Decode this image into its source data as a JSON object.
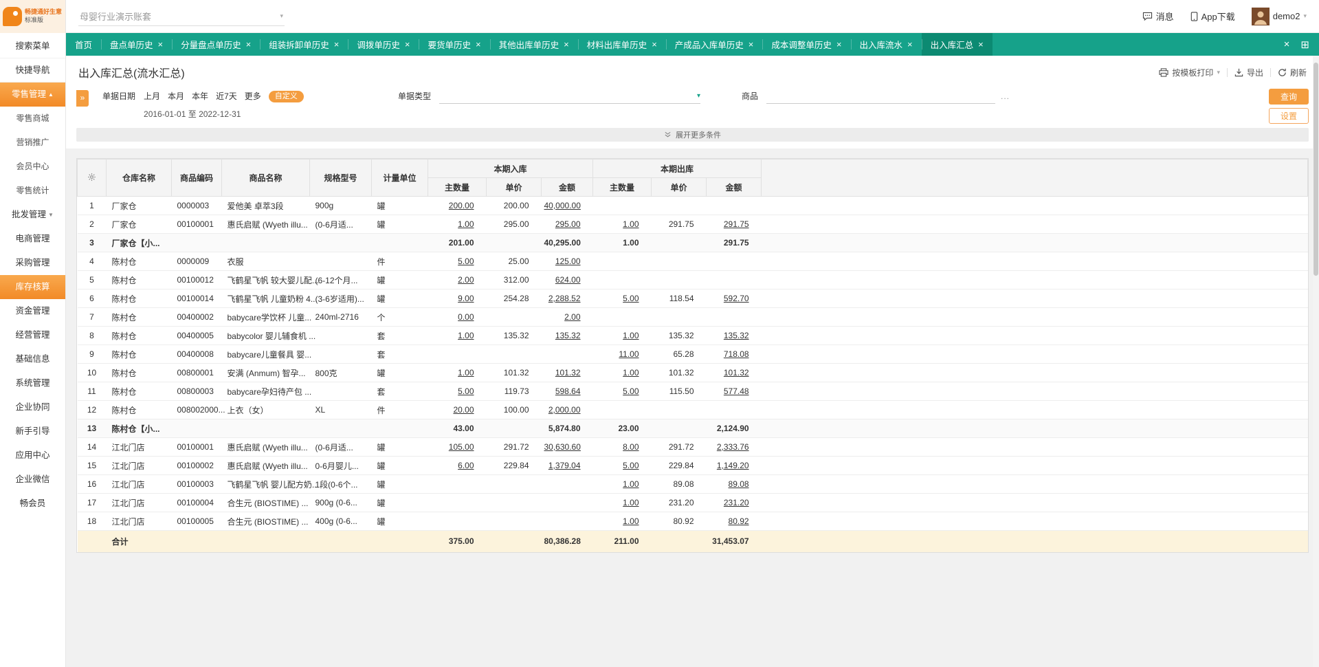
{
  "brand": {
    "name": "畅捷通好生意",
    "edition": "标准版"
  },
  "topbar": {
    "account_placeholder": "母婴行业演示账套",
    "message": "消息",
    "app_download": "App下载",
    "username": "demo2"
  },
  "tabs": [
    {
      "label": "首页",
      "closable": false,
      "active": false
    },
    {
      "label": "盘点单历史",
      "closable": true,
      "active": false
    },
    {
      "label": "分量盘点单历史",
      "closable": true,
      "active": false
    },
    {
      "label": "组装拆卸单历史",
      "closable": true,
      "active": false
    },
    {
      "label": "调拨单历史",
      "closable": true,
      "active": false
    },
    {
      "label": "要货单历史",
      "closable": true,
      "active": false
    },
    {
      "label": "其他出库单历史",
      "closable": true,
      "active": false
    },
    {
      "label": "材料出库单历史",
      "closable": true,
      "active": false
    },
    {
      "label": "产成品入库单历史",
      "closable": true,
      "active": false
    },
    {
      "label": "成本调整单历史",
      "closable": true,
      "active": false
    },
    {
      "label": "出入库流水",
      "closable": true,
      "active": false
    },
    {
      "label": "出入库汇总",
      "closable": true,
      "active": true
    }
  ],
  "sidebar": [
    {
      "label": "搜索菜单",
      "style": "plain sep"
    },
    {
      "label": "快捷导航",
      "style": "plain sep"
    },
    {
      "label": "零售管理",
      "style": "open",
      "arrow": "▲"
    },
    {
      "label": "零售商城",
      "style": "sub"
    },
    {
      "label": "营销推广",
      "style": "sub"
    },
    {
      "label": "会员中心",
      "style": "sub"
    },
    {
      "label": "零售统计",
      "style": "sub"
    },
    {
      "label": "批发管理",
      "style": "plain",
      "arrow": "▼"
    },
    {
      "label": "电商管理",
      "style": "plain"
    },
    {
      "label": "采购管理",
      "style": "plain"
    },
    {
      "label": "库存核算",
      "style": "active"
    },
    {
      "label": "资金管理",
      "style": "plain"
    },
    {
      "label": "经营管理",
      "style": "plain"
    },
    {
      "label": "基础信息",
      "style": "plain"
    },
    {
      "label": "系统管理",
      "style": "plain"
    },
    {
      "label": "企业协同",
      "style": "plain"
    },
    {
      "label": "新手引导",
      "style": "plain"
    },
    {
      "label": "应用中心",
      "style": "plain"
    },
    {
      "label": "企业微信",
      "style": "plain"
    },
    {
      "label": "畅会员",
      "style": "plain"
    }
  ],
  "page": {
    "title": "出入库汇总(流水汇总)",
    "print_label": "按模板打印",
    "export_label": "导出",
    "refresh_label": "刷新"
  },
  "filters": {
    "date_label": "单据日期",
    "date_links": [
      "上月",
      "本月",
      "本年",
      "近7天",
      "更多"
    ],
    "date_custom": "自定义",
    "date_range": "2016-01-01 至 2022-12-31",
    "doc_type_label": "单据类型",
    "goods_label": "商品",
    "goods_ellipsis": "...",
    "query_label": "查询",
    "settings_label": "设置",
    "expand_more": "展开更多条件"
  },
  "table": {
    "columns": [
      "仓库名称",
      "商品编码",
      "商品名称",
      "规格型号",
      "计量单位"
    ],
    "group_in": "本期入库",
    "group_out": "本期出库",
    "sub_columns": [
      "主数量",
      "单价",
      "金额"
    ],
    "rows": [
      {
        "idx": "1",
        "type": "item",
        "warehouse": "厂家仓",
        "code": "0000003",
        "name": "爱他美 卓萃3段",
        "spec": "900g",
        "unit": "罐",
        "in_qty": "200.00",
        "in_price": "200.00",
        "in_amt": "40,000.00",
        "out_qty": "",
        "out_price": "",
        "out_amt": ""
      },
      {
        "idx": "2",
        "type": "item",
        "warehouse": "厂家仓",
        "code": "00100001",
        "name": "惠氏启赋 (Wyeth illu...",
        "spec": "(0-6月适...",
        "unit": "罐",
        "in_qty": "1.00",
        "in_price": "295.00",
        "in_amt": "295.00",
        "out_qty": "1.00",
        "out_price": "291.75",
        "out_amt": "291.75"
      },
      {
        "idx": "3",
        "type": "subtotal",
        "warehouse": "厂家仓【小...",
        "in_qty": "201.00",
        "in_amt": "40,295.00",
        "out_qty": "1.00",
        "out_amt": "291.75"
      },
      {
        "idx": "4",
        "type": "item",
        "warehouse": "陈村仓",
        "code": "0000009",
        "name": "衣服",
        "spec": "",
        "unit": "件",
        "in_qty": "5.00",
        "in_price": "25.00",
        "in_amt": "125.00",
        "out_qty": "",
        "out_price": "",
        "out_amt": ""
      },
      {
        "idx": "5",
        "type": "item",
        "warehouse": "陈村仓",
        "code": "00100012",
        "name": "飞鹤星飞帆 较大婴儿配...",
        "spec": "(6-12个月...",
        "unit": "罐",
        "in_qty": "2.00",
        "in_price": "312.00",
        "in_amt": "624.00",
        "out_qty": "",
        "out_price": "",
        "out_amt": ""
      },
      {
        "idx": "6",
        "type": "item",
        "warehouse": "陈村仓",
        "code": "00100014",
        "name": "飞鹤星飞帆 儿童奶粉 4...",
        "spec": "(3-6岁适用)...",
        "unit": "罐",
        "in_qty": "9.00",
        "in_price": "254.28",
        "in_amt": "2,288.52",
        "out_qty": "5.00",
        "out_price": "118.54",
        "out_amt": "592.70"
      },
      {
        "idx": "7",
        "type": "item",
        "warehouse": "陈村仓",
        "code": "00400002",
        "name": "babycare学饮杯 儿童...",
        "spec": "240ml-2716",
        "unit": "个",
        "in_qty": "0.00",
        "in_price": "",
        "in_amt": "2.00",
        "out_qty": "",
        "out_price": "",
        "out_amt": ""
      },
      {
        "idx": "8",
        "type": "item",
        "warehouse": "陈村仓",
        "code": "00400005",
        "name": "babycolor 婴儿辅食机 ...",
        "spec": "",
        "unit": "套",
        "in_qty": "1.00",
        "in_price": "135.32",
        "in_amt": "135.32",
        "out_qty": "1.00",
        "out_price": "135.32",
        "out_amt": "135.32"
      },
      {
        "idx": "9",
        "type": "item",
        "warehouse": "陈村仓",
        "code": "00400008",
        "name": "babycare儿童餐具 婴...",
        "spec": "",
        "unit": "套",
        "in_qty": "",
        "in_price": "",
        "in_amt": "",
        "out_qty": "11.00",
        "out_price": "65.28",
        "out_amt": "718.08"
      },
      {
        "idx": "10",
        "type": "item",
        "warehouse": "陈村仓",
        "code": "00800001",
        "name": "安满 (Anmum) 智孕...",
        "spec": "800克",
        "unit": "罐",
        "in_qty": "1.00",
        "in_price": "101.32",
        "in_amt": "101.32",
        "out_qty": "1.00",
        "out_price": "101.32",
        "out_amt": "101.32"
      },
      {
        "idx": "11",
        "type": "item",
        "warehouse": "陈村仓",
        "code": "00800003",
        "name": "babycare孕妇待产包 ...",
        "spec": "",
        "unit": "套",
        "in_qty": "5.00",
        "in_price": "119.73",
        "in_amt": "598.64",
        "out_qty": "5.00",
        "out_price": "115.50",
        "out_amt": "577.48"
      },
      {
        "idx": "12",
        "type": "item",
        "warehouse": "陈村仓",
        "code": "008002000...",
        "name": "上衣（女）",
        "spec": "XL",
        "unit": "件",
        "in_qty": "20.00",
        "in_price": "100.00",
        "in_amt": "2,000.00",
        "out_qty": "",
        "out_price": "",
        "out_amt": ""
      },
      {
        "idx": "13",
        "type": "subtotal",
        "warehouse": "陈村仓【小...",
        "in_qty": "43.00",
        "in_amt": "5,874.80",
        "out_qty": "23.00",
        "out_amt": "2,124.90"
      },
      {
        "idx": "14",
        "type": "item",
        "warehouse": "江北门店",
        "code": "00100001",
        "name": "惠氏启赋 (Wyeth illu...",
        "spec": "(0-6月适...",
        "unit": "罐",
        "in_qty": "105.00",
        "in_price": "291.72",
        "in_amt": "30,630.60",
        "out_qty": "8.00",
        "out_price": "291.72",
        "out_amt": "2,333.76"
      },
      {
        "idx": "15",
        "type": "item",
        "warehouse": "江北门店",
        "code": "00100002",
        "name": "惠氏启赋 (Wyeth illu...",
        "spec": "0-6月婴儿...",
        "unit": "罐",
        "in_qty": "6.00",
        "in_price": "229.84",
        "in_amt": "1,379.04",
        "out_qty": "5.00",
        "out_price": "229.84",
        "out_amt": "1,149.20"
      },
      {
        "idx": "16",
        "type": "item",
        "warehouse": "江北门店",
        "code": "00100003",
        "name": "飞鹤星飞帆 婴儿配方奶...",
        "spec": "1段(0-6个...",
        "unit": "罐",
        "in_qty": "",
        "in_price": "",
        "in_amt": "",
        "out_qty": "1.00",
        "out_price": "89.08",
        "out_amt": "89.08"
      },
      {
        "idx": "17",
        "type": "item",
        "warehouse": "江北门店",
        "code": "00100004",
        "name": "合生元 (BIOSTIME) ...",
        "spec": "900g (0-6...",
        "unit": "罐",
        "in_qty": "",
        "in_price": "",
        "in_amt": "",
        "out_qty": "1.00",
        "out_price": "231.20",
        "out_amt": "231.20"
      },
      {
        "idx": "18",
        "type": "item",
        "warehouse": "江北门店",
        "code": "00100005",
        "name": "合生元 (BIOSTIME) ...",
        "spec": "400g (0-6...",
        "unit": "罐",
        "in_qty": "",
        "in_price": "",
        "in_amt": "",
        "out_qty": "1.00",
        "out_price": "80.92",
        "out_amt": "80.92"
      }
    ],
    "total": {
      "label": "合计",
      "in_qty": "375.00",
      "in_amt": "80,386.28",
      "out_qty": "211.00",
      "out_amt": "31,453.07"
    }
  }
}
